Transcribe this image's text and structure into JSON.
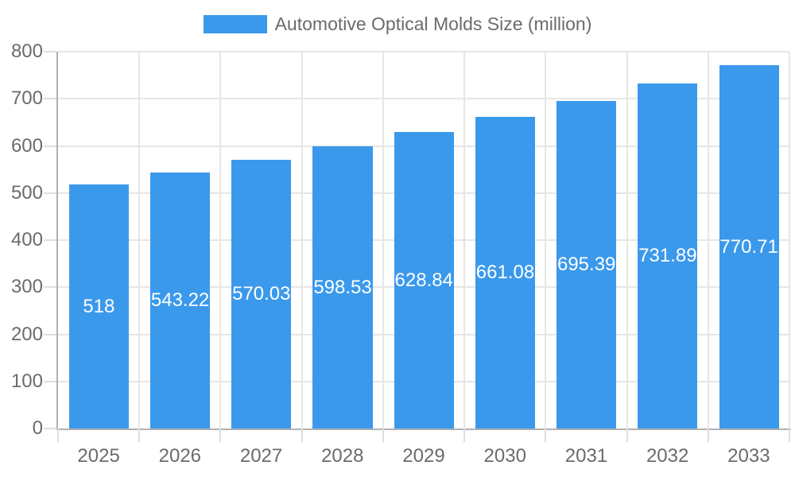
{
  "chart_data": {
    "type": "bar",
    "title": "Automotive Optical Molds Size (million)",
    "legend_position": "top",
    "categories": [
      "2025",
      "2026",
      "2027",
      "2028",
      "2029",
      "2030",
      "2031",
      "2032",
      "2033"
    ],
    "series": [
      {
        "name": "Automotive Optical Molds Size (million)",
        "values": [
          518,
          543.22,
          570.03,
          598.53,
          628.84,
          661.08,
          695.39,
          731.89,
          770.71
        ]
      }
    ],
    "value_labels": [
      "518",
      "543.22",
      "570.03",
      "598.53",
      "628.84",
      "661.08",
      "695.39",
      "731.89",
      "770.71"
    ],
    "xlabel": "",
    "ylabel": "",
    "ylim": [
      0,
      800
    ],
    "yticks": [
      0,
      100,
      200,
      300,
      400,
      500,
      600,
      700,
      800
    ],
    "grid": true
  },
  "colors": {
    "bar": "#3b99ec",
    "grid_line": "#e6e6e6",
    "axis_line": "#b0b0b0",
    "tick_mark": "#dedede",
    "tick_text": "#6b6b6b",
    "legend_text": "#6b6b6b",
    "value_text": "#ffffff",
    "background": "#ffffff"
  }
}
